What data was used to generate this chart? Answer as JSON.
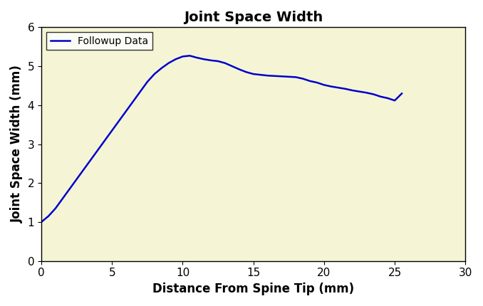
{
  "title": "Joint Space Width",
  "xlabel": "Distance From Spine Tip (mm)",
  "ylabel": "Joint Space Width (mm)",
  "legend_label": "Followup Data",
  "line_color": "#0000cc",
  "background_color": "#f5f5d5",
  "xlim": [
    0,
    30
  ],
  "ylim": [
    0,
    6
  ],
  "xticks": [
    0,
    5,
    10,
    15,
    20,
    25,
    30
  ],
  "yticks": [
    0,
    1,
    2,
    3,
    4,
    5,
    6
  ],
  "x_data": [
    0.0,
    0.5,
    1.0,
    1.5,
    2.0,
    2.5,
    3.0,
    3.5,
    4.0,
    4.5,
    5.0,
    5.5,
    6.0,
    6.5,
    7.0,
    7.5,
    8.0,
    8.5,
    9.0,
    9.5,
    10.0,
    10.5,
    11.0,
    11.5,
    12.0,
    12.5,
    13.0,
    13.5,
    14.0,
    14.5,
    15.0,
    15.5,
    16.0,
    16.5,
    17.0,
    17.5,
    18.0,
    18.5,
    19.0,
    19.5,
    20.0,
    20.5,
    21.0,
    21.5,
    22.0,
    22.5,
    23.0,
    23.5,
    24.0,
    24.5,
    25.0,
    25.5
  ],
  "y_data": [
    1.0,
    1.15,
    1.35,
    1.6,
    1.85,
    2.1,
    2.35,
    2.6,
    2.85,
    3.1,
    3.35,
    3.6,
    3.85,
    4.1,
    4.35,
    4.6,
    4.8,
    4.95,
    5.08,
    5.18,
    5.25,
    5.27,
    5.22,
    5.18,
    5.15,
    5.13,
    5.08,
    5.0,
    4.92,
    4.85,
    4.8,
    4.78,
    4.76,
    4.75,
    4.74,
    4.73,
    4.72,
    4.68,
    4.62,
    4.58,
    4.52,
    4.48,
    4.45,
    4.42,
    4.38,
    4.35,
    4.32,
    4.28,
    4.22,
    4.18,
    4.12,
    4.3
  ],
  "title_fontsize": 14,
  "label_fontsize": 12,
  "tick_fontsize": 11,
  "legend_fontsize": 10,
  "line_width": 1.8,
  "outer_bg": "#ffffff"
}
